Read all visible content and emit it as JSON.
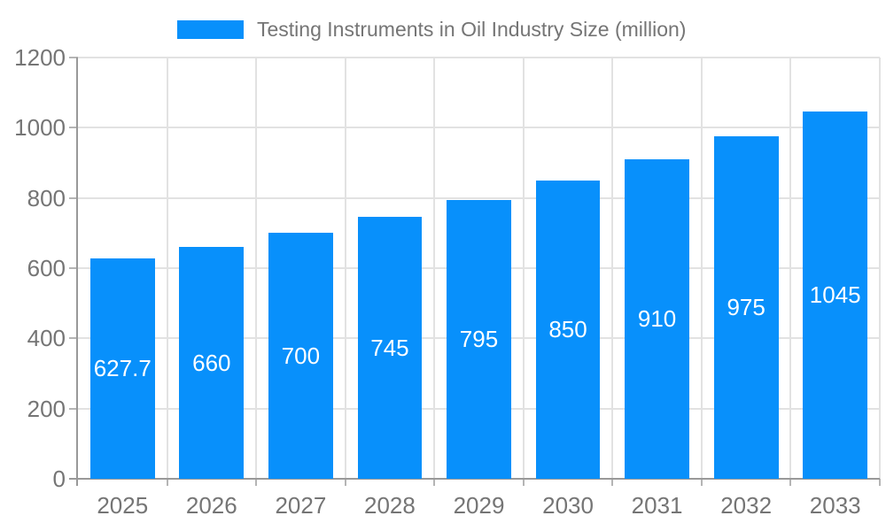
{
  "chart_data": {
    "type": "bar",
    "title": "Testing Instruments in Oil Industry Size (million)",
    "categories": [
      "2025",
      "2026",
      "2027",
      "2028",
      "2029",
      "2030",
      "2031",
      "2032",
      "2033"
    ],
    "values": [
      627.7,
      660,
      700,
      745,
      795,
      850,
      910,
      975,
      1045
    ],
    "value_labels": [
      "627.7",
      "660",
      "700",
      "745",
      "795",
      "850",
      "910",
      "975",
      "1045"
    ],
    "xlabel": "",
    "ylabel": "",
    "ylim": [
      0,
      1200
    ],
    "y_ticks": [
      0,
      200,
      400,
      600,
      800,
      1000,
      1200
    ],
    "y_tick_labels": [
      "0",
      "200",
      "400",
      "600",
      "800",
      "1000",
      "1200"
    ],
    "grid": true,
    "legend_position": "top",
    "colors": {
      "bar": "#0890fb",
      "grid": "#e2e2e2",
      "axis": "#999999",
      "tick": "#b5b5b5",
      "text": "#757575",
      "bar_label": "#ffffff",
      "background": "#ffffff"
    }
  }
}
